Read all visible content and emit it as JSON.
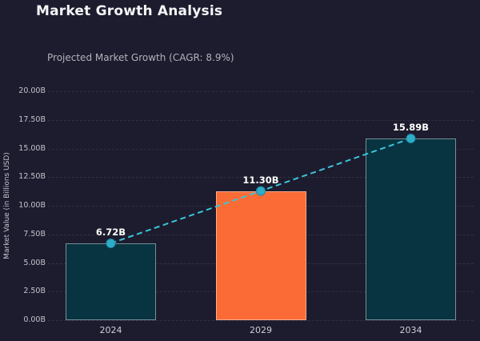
{
  "title": "Market Growth Analysis",
  "subtitle": "Projected Market Growth (CAGR: 8.9%)",
  "chart_data": {
    "type": "bar",
    "categories": [
      "2024",
      "2029",
      "2034"
    ],
    "values": [
      6.72,
      11.3,
      15.89
    ],
    "bar_labels": [
      "6.72B",
      "11.30B",
      "15.89B"
    ],
    "bar_colors": [
      "#083340",
      "#fb6b35",
      "#083340"
    ],
    "title": "Market Growth Analysis",
    "subtitle": "Projected Market Growth (CAGR: 8.9%)",
    "xlabel": "",
    "ylabel": "Market Value (in Billions USD)",
    "ylim": [
      0,
      20
    ],
    "yticks": [
      0,
      2.5,
      5,
      7.5,
      10,
      12.5,
      15,
      17.5,
      20
    ],
    "ytick_labels": [
      "0.00B",
      "2.50B",
      "5.00B",
      "7.50B",
      "10.00B",
      "12.50B",
      "15.00B",
      "17.50B",
      "20.00B"
    ],
    "grid": "horizontal-dashed-faint",
    "legend": "none",
    "overlay_line": {
      "type": "line",
      "style": "dashed",
      "x": [
        "2024",
        "2029",
        "2034"
      ],
      "y": [
        6.72,
        11.3,
        15.89
      ],
      "color": "#3cc4d9",
      "marker": "circle",
      "marker_color": "#2fadc8"
    }
  },
  "colors": {
    "background": "#1c1c2e",
    "title_text": "#f5f5f7",
    "subtitle_text": "#b2b2bc",
    "axis_text": "#c2c2cc",
    "value_label_text": "#ffffff",
    "bar_teal": "#083340",
    "bar_orange": "#fb6b35",
    "line_teal": "#3cc4d9",
    "marker_fill": "#2fadc8",
    "bar_border": "rgba(255,255,255,0.45)"
  }
}
